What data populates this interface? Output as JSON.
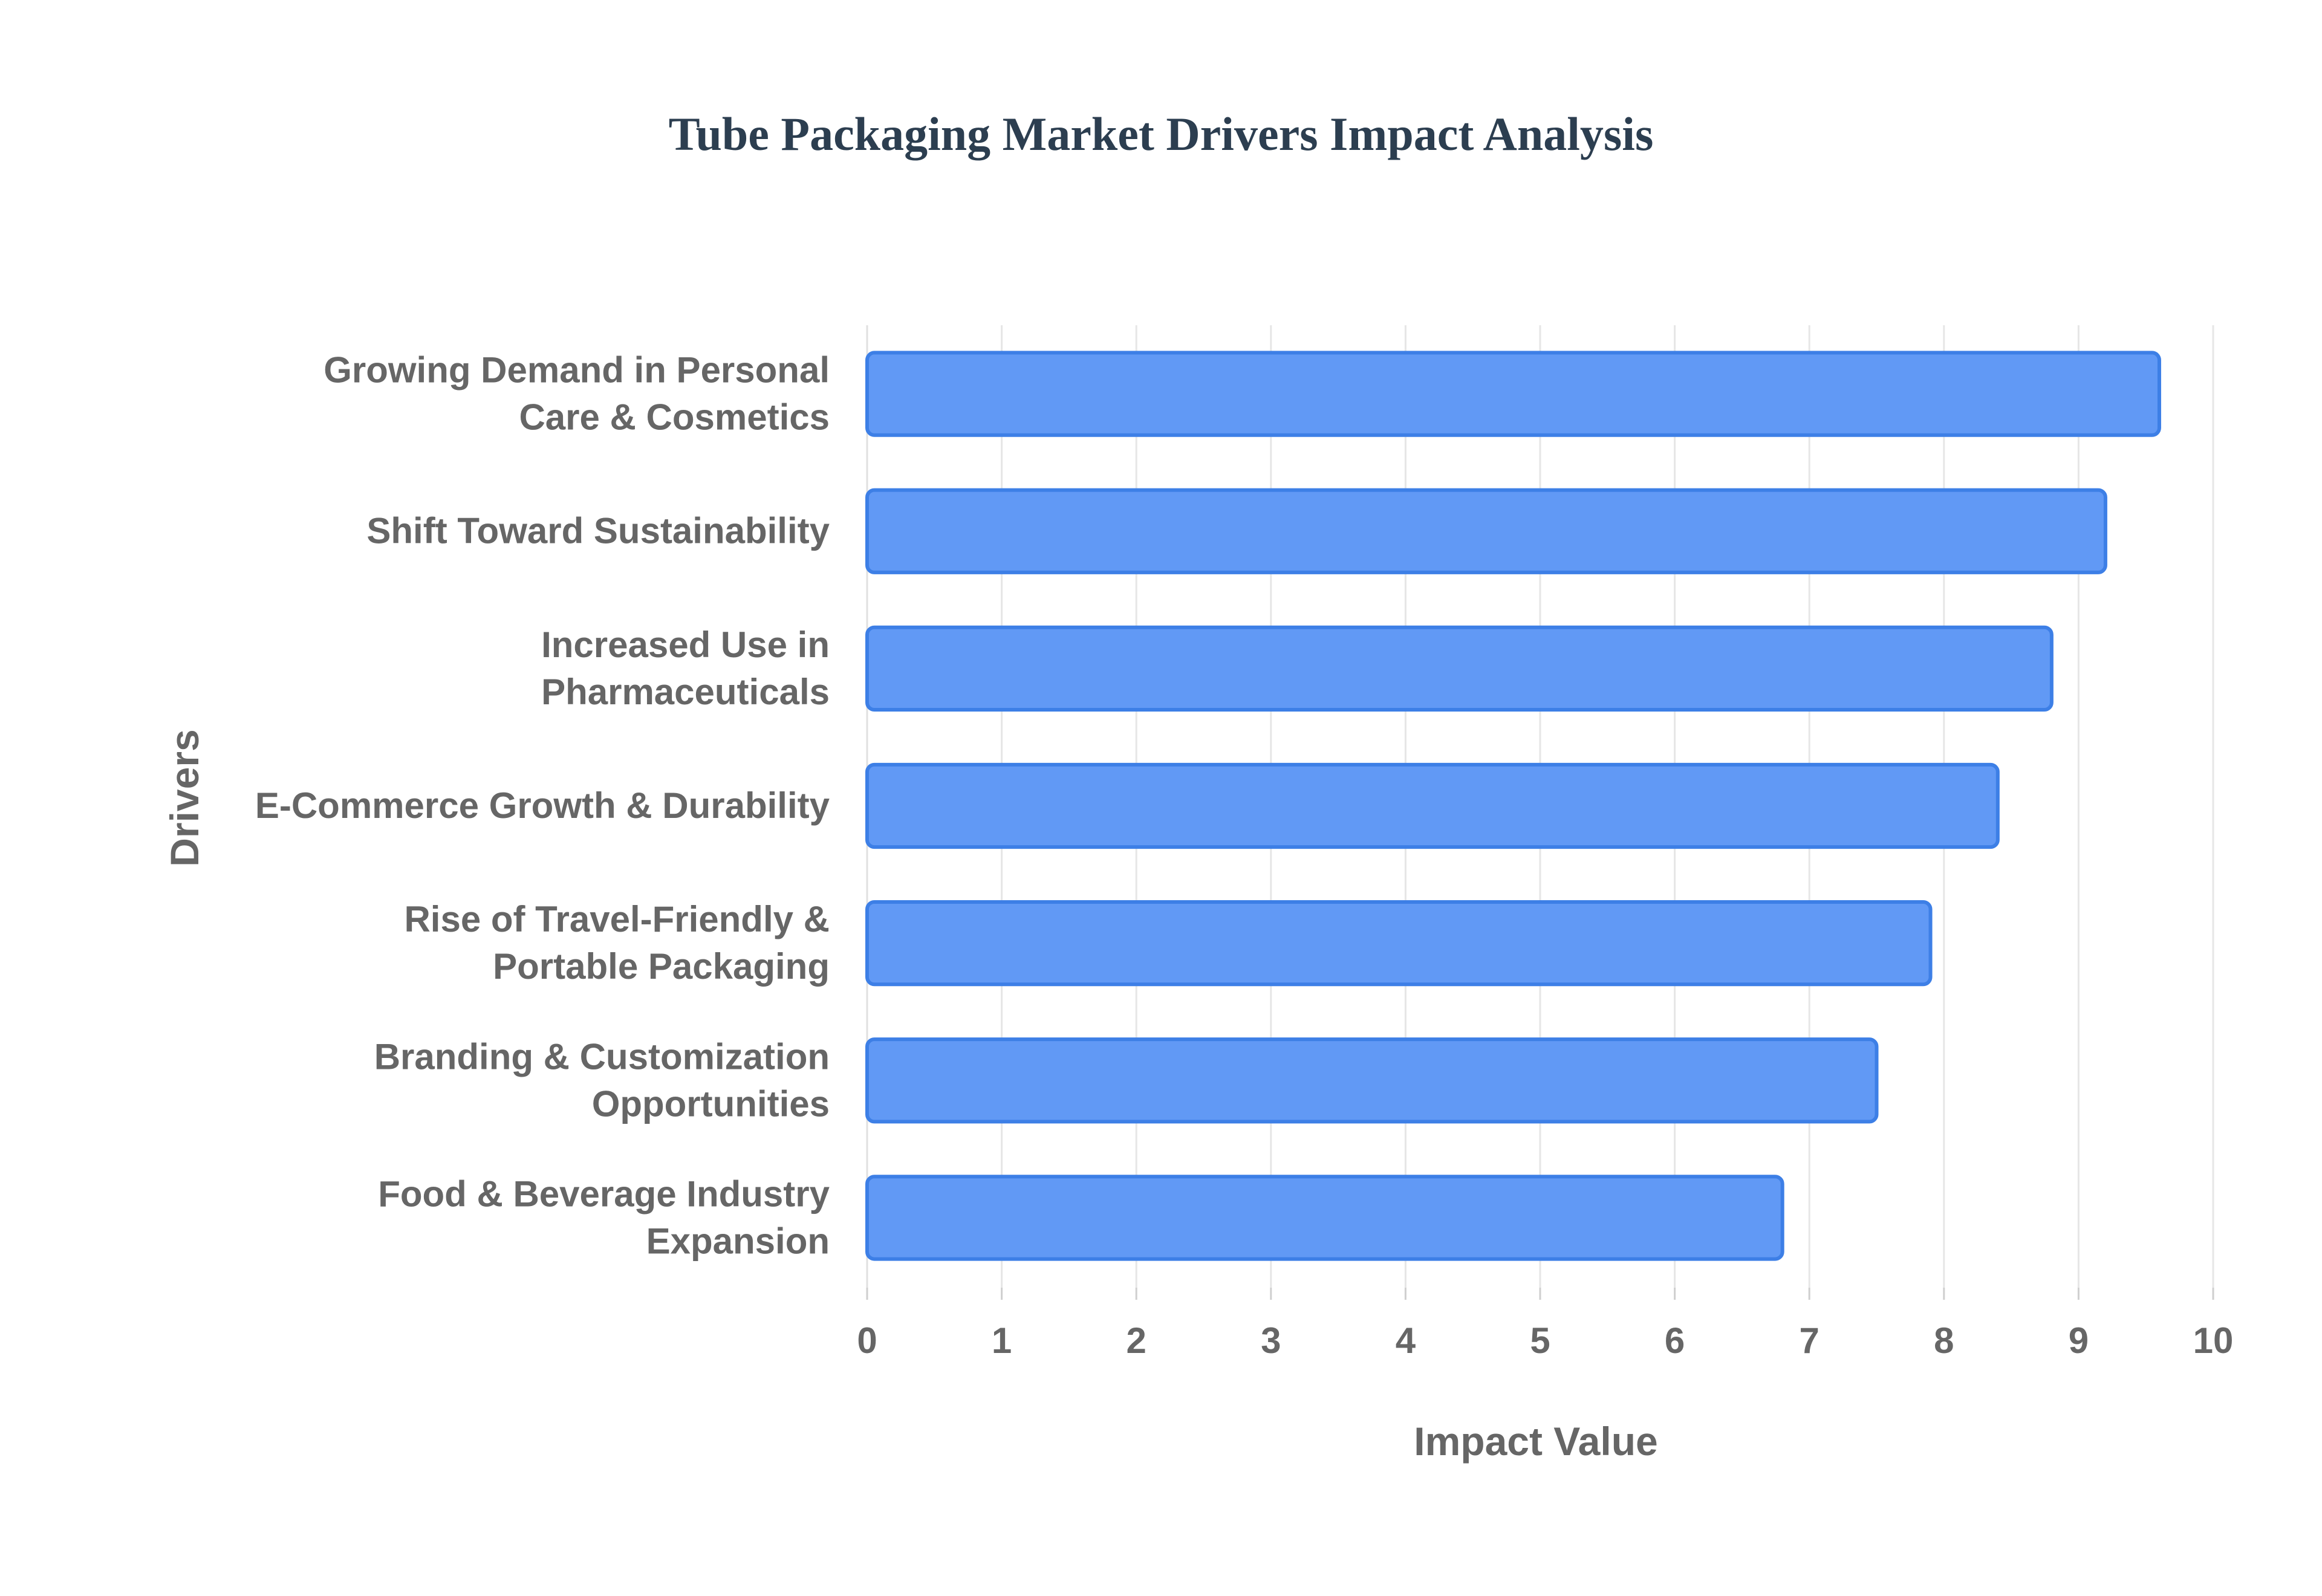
{
  "chart_data": {
    "type": "bar",
    "orientation": "horizontal",
    "title": "Tube Packaging Market Drivers Impact Analysis",
    "xlabel": "Impact Value",
    "ylabel": "Drivers",
    "xlim": [
      0,
      10
    ],
    "x_ticks": [
      "0",
      "1",
      "2",
      "3",
      "4",
      "5",
      "6",
      "7",
      "8",
      "9",
      "10"
    ],
    "grid": true,
    "legend": "none",
    "bar_color": "#6199f5",
    "bar_border_color": "#3d7fe6",
    "categories": [
      [
        "Growing Demand in Personal",
        "Care & Cosmetics"
      ],
      [
        "Shift Toward Sustainability"
      ],
      [
        "Increased Use in",
        "Pharmaceuticals"
      ],
      [
        "E-Commerce Growth & Durability"
      ],
      [
        "Rise of Travel-Friendly &",
        "Portable Packaging"
      ],
      [
        "Branding & Customization",
        "Opportunities"
      ],
      [
        "Food & Beverage Industry",
        "Expansion"
      ]
    ],
    "values": [
      9.6,
      9.2,
      8.8,
      8.4,
      7.9,
      7.5,
      6.8
    ]
  }
}
